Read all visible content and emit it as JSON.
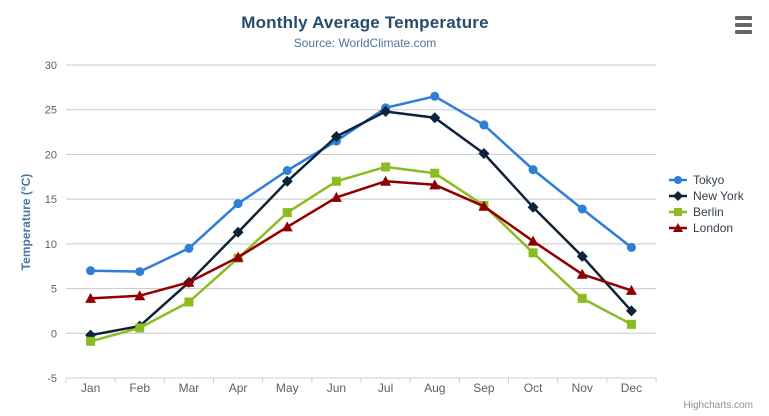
{
  "chart_data": {
    "type": "line",
    "title": "Monthly Average Temperature",
    "subtitle": "Source: WorldClimate.com",
    "ylabel": "Temperature (°C)",
    "xlabel": "",
    "ylim": [
      -5,
      30
    ],
    "ytick_step": 5,
    "grid": true,
    "legend_position": "right",
    "credits": "Highcharts.com",
    "categories": [
      "Jan",
      "Feb",
      "Mar",
      "Apr",
      "May",
      "Jun",
      "Jul",
      "Aug",
      "Sep",
      "Oct",
      "Nov",
      "Dec"
    ],
    "series": [
      {
        "name": "Tokyo",
        "marker": "circle",
        "color": "#2f7ed8",
        "values": [
          7.0,
          6.9,
          9.5,
          14.5,
          18.2,
          21.5,
          25.2,
          26.5,
          23.3,
          18.3,
          13.9,
          9.6
        ]
      },
      {
        "name": "New York",
        "marker": "diamond",
        "color": "#0d233a",
        "values": [
          -0.2,
          0.8,
          5.7,
          11.3,
          17.0,
          22.0,
          24.8,
          24.1,
          20.1,
          14.1,
          8.6,
          2.5
        ]
      },
      {
        "name": "Berlin",
        "marker": "square",
        "color": "#8bbc21",
        "values": [
          -0.9,
          0.6,
          3.5,
          8.4,
          13.5,
          17.0,
          18.6,
          17.9,
          14.3,
          9.0,
          3.9,
          1.0
        ]
      },
      {
        "name": "London",
        "marker": "triangle",
        "color": "#910000",
        "values": [
          3.9,
          4.2,
          5.7,
          8.5,
          11.9,
          15.2,
          17.0,
          16.6,
          14.2,
          10.3,
          6.6,
          4.8
        ]
      }
    ],
    "colors": {
      "title": "#274b6d",
      "subtitle": "#4d759e",
      "axis_title": "#4d759e",
      "tick_label": "#606060",
      "grid_line": "#c8c8c8",
      "axis_line": "#c0d0e0",
      "legend_text": "#33414e",
      "credits_text": "#909090",
      "menu_icon": "#666666"
    }
  }
}
